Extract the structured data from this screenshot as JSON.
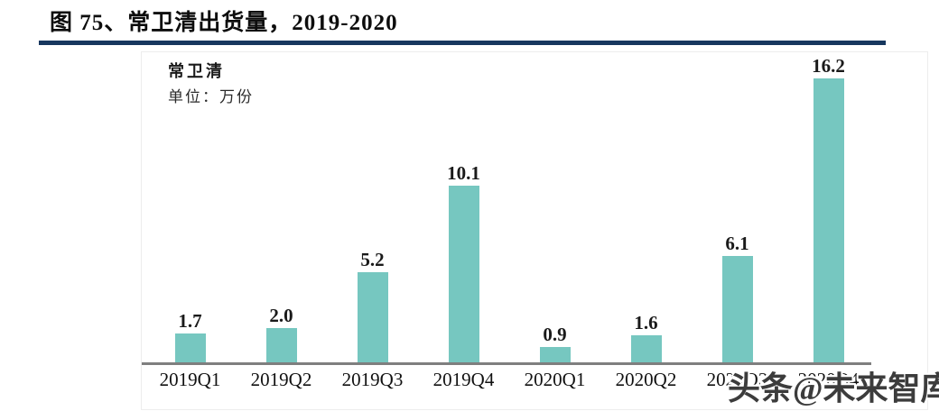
{
  "figure": {
    "title": "图 75、常卫清出货量，2019-2020",
    "accent_color": "#17375E"
  },
  "chart_data": {
    "type": "bar",
    "title": "常卫清",
    "unit_label": "单位：万份",
    "categories": [
      "2019Q1",
      "2019Q2",
      "2019Q3",
      "2019Q4",
      "2020Q1",
      "2020Q2",
      "2020Q3",
      "2020Q4"
    ],
    "values": [
      1.7,
      2.0,
      5.2,
      10.1,
      0.9,
      1.6,
      6.1,
      16.2
    ],
    "value_labels": [
      "1.7",
      "2.0",
      "5.2",
      "10.1",
      "0.9",
      "1.6",
      "6.1",
      "16.2"
    ],
    "bar_color": "#76C7C0",
    "axis_color": "#7f7f7f",
    "ylim": [
      0,
      17.5
    ],
    "grid": false,
    "legend_position": "top-left"
  },
  "watermark": {
    "text": "头条@未来智库"
  }
}
